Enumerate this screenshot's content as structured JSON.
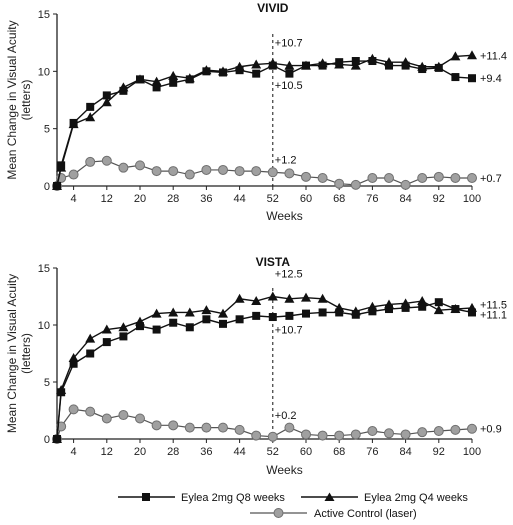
{
  "colors": {
    "axis": "#222222",
    "series_dark": "#111111",
    "laser_fill": "#a0a0a0",
    "laser_stroke": "#6f6f6f"
  },
  "legend": {
    "q8": "Eylea 2mg Q8 weeks",
    "q4": "Eylea 2mg Q4 weeks",
    "laser": "Active Control (laser)"
  },
  "chart_data": [
    {
      "type": "line",
      "title": "VIVID",
      "xlabel": "Weeks",
      "ylabel_line1": "Mean Change in Visual Acuity",
      "ylabel_line2": "(letters)",
      "xlim": [
        0,
        100
      ],
      "ylim": [
        0,
        15
      ],
      "x_ticks": [
        4,
        12,
        20,
        28,
        36,
        44,
        52,
        60,
        68,
        76,
        84,
        92,
        100
      ],
      "y_ticks": [
        0,
        5,
        10,
        15
      ],
      "dashed_line_x": 52,
      "series": [
        {
          "name": "Eylea 2mg Q8 weeks",
          "marker": "square",
          "x": [
            0,
            1,
            4,
            8,
            12,
            16,
            20,
            24,
            28,
            32,
            36,
            40,
            44,
            48,
            52,
            56,
            60,
            64,
            68,
            72,
            76,
            80,
            84,
            88,
            92,
            96,
            100
          ],
          "y": [
            0,
            1.8,
            5.5,
            6.9,
            7.9,
            8.3,
            9.3,
            8.6,
            9.0,
            9.3,
            10.0,
            9.9,
            10.1,
            9.8,
            10.5,
            9.8,
            10.5,
            10.5,
            10.8,
            10.9,
            10.9,
            10.5,
            10.5,
            10.2,
            10.3,
            9.5,
            9.4
          ]
        },
        {
          "name": "Eylea 2mg Q4 weeks",
          "marker": "triangle",
          "x": [
            0,
            1,
            4,
            8,
            12,
            16,
            20,
            24,
            28,
            32,
            36,
            40,
            44,
            48,
            52,
            56,
            60,
            64,
            68,
            72,
            76,
            80,
            84,
            88,
            92,
            96,
            100
          ],
          "y": [
            0,
            1.6,
            5.4,
            6.0,
            7.3,
            8.6,
            9.3,
            9.1,
            9.6,
            9.4,
            10.1,
            10.0,
            10.4,
            10.6,
            10.7,
            10.5,
            10.5,
            10.7,
            10.6,
            10.5,
            11.1,
            10.8,
            10.8,
            10.4,
            10.4,
            11.3,
            11.4
          ]
        },
        {
          "name": "Active Control (laser)",
          "marker": "circle",
          "x": [
            0,
            1,
            4,
            8,
            12,
            16,
            20,
            24,
            28,
            32,
            36,
            40,
            44,
            48,
            52,
            56,
            60,
            64,
            68,
            72,
            76,
            80,
            84,
            88,
            92,
            96,
            100
          ],
          "y": [
            0,
            0.7,
            1.0,
            2.1,
            2.2,
            1.6,
            1.8,
            1.3,
            1.3,
            1.0,
            1.4,
            1.4,
            1.3,
            1.3,
            1.2,
            1.1,
            0.8,
            0.7,
            0.2,
            0.1,
            0.7,
            0.7,
            0.1,
            0.7,
            0.8,
            0.7,
            0.7
          ]
        }
      ],
      "annotations": [
        {
          "text": "+10.7",
          "x": 52,
          "y": 12.5,
          "align": "start"
        },
        {
          "text": "+10.5",
          "x": 52,
          "y": 8.8,
          "align": "start"
        },
        {
          "text": "+1.2",
          "x": 52,
          "y": 2.3,
          "align": "start"
        },
        {
          "text": "+11.4",
          "x": 100,
          "y": 11.4,
          "align": "end-right"
        },
        {
          "text": "+9.4",
          "x": 100,
          "y": 9.4,
          "align": "end-right"
        },
        {
          "text": "+0.7",
          "x": 100,
          "y": 0.7,
          "align": "end-right"
        }
      ]
    },
    {
      "type": "line",
      "title": "VISTA",
      "xlabel": "Weeks",
      "ylabel_line1": "Mean Change in Visual Acuity",
      "ylabel_line2": "(letters)",
      "xlim": [
        0,
        100
      ],
      "ylim": [
        0,
        15
      ],
      "x_ticks": [
        4,
        12,
        20,
        28,
        36,
        44,
        52,
        60,
        68,
        76,
        84,
        92,
        100
      ],
      "y_ticks": [
        0,
        5,
        10,
        15
      ],
      "dashed_line_x": 52,
      "series": [
        {
          "name": "Eylea 2mg Q8 weeks",
          "marker": "square",
          "x": [
            0,
            1,
            4,
            8,
            12,
            16,
            20,
            24,
            28,
            32,
            36,
            40,
            44,
            48,
            52,
            56,
            60,
            64,
            68,
            72,
            76,
            80,
            84,
            88,
            92,
            96,
            100
          ],
          "y": [
            0,
            4.1,
            6.6,
            7.5,
            8.5,
            9.0,
            9.9,
            9.6,
            10.2,
            9.8,
            10.5,
            10.1,
            10.5,
            10.8,
            10.7,
            10.8,
            11.0,
            11.1,
            11.1,
            10.9,
            11.2,
            11.4,
            11.5,
            11.6,
            12.0,
            11.4,
            11.1
          ]
        },
        {
          "name": "Eylea 2mg Q4 weeks",
          "marker": "triangle",
          "x": [
            0,
            1,
            4,
            8,
            12,
            16,
            20,
            24,
            28,
            32,
            36,
            40,
            44,
            48,
            52,
            56,
            60,
            64,
            68,
            72,
            76,
            80,
            84,
            88,
            92,
            96,
            100
          ],
          "y": [
            0,
            4.3,
            7.1,
            8.8,
            9.6,
            9.8,
            10.3,
            11.0,
            11.1,
            11.1,
            11.3,
            11.0,
            12.3,
            12.1,
            12.5,
            12.3,
            12.4,
            12.3,
            11.5,
            11.2,
            11.6,
            11.8,
            11.9,
            12.1,
            11.3,
            11.4,
            11.5
          ]
        },
        {
          "name": "Active Control (laser)",
          "marker": "circle",
          "x": [
            0,
            1,
            4,
            8,
            12,
            16,
            20,
            24,
            28,
            32,
            36,
            40,
            44,
            48,
            52,
            56,
            60,
            64,
            68,
            72,
            76,
            80,
            84,
            88,
            92,
            96,
            100
          ],
          "y": [
            0,
            1.1,
            2.6,
            2.4,
            1.8,
            2.1,
            1.8,
            1.2,
            1.2,
            1.0,
            1.0,
            1.0,
            0.8,
            0.3,
            0.2,
            1.0,
            0.4,
            0.3,
            0.3,
            0.4,
            0.7,
            0.5,
            0.4,
            0.6,
            0.7,
            0.8,
            0.9
          ]
        }
      ],
      "annotations": [
        {
          "text": "+12.5",
          "x": 52,
          "y": 14.5,
          "align": "start"
        },
        {
          "text": "+10.7",
          "x": 52,
          "y": 9.6,
          "align": "start"
        },
        {
          "text": "+0.2",
          "x": 52,
          "y": 2.1,
          "align": "start"
        },
        {
          "text": "+11.5",
          "x": 100,
          "y": 11.8,
          "align": "end-right"
        },
        {
          "text": "+11.1",
          "x": 100,
          "y": 10.9,
          "align": "end-right"
        },
        {
          "text": "+0.9",
          "x": 100,
          "y": 0.9,
          "align": "end-right"
        }
      ]
    }
  ]
}
